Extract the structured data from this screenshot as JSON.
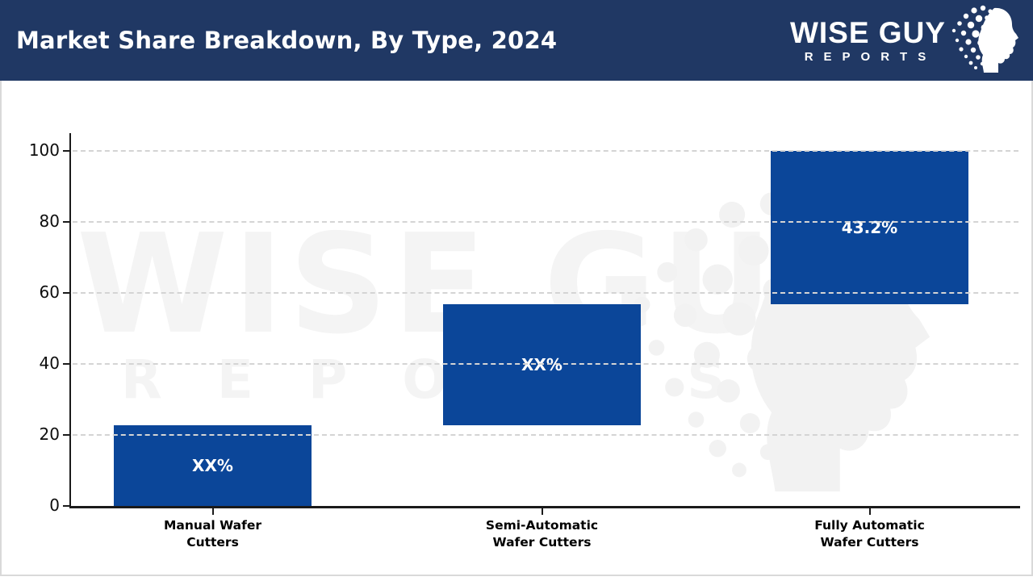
{
  "header": {
    "title": "Market Share Breakdown, By Type, 2024",
    "logo": {
      "name": "WISE GUY",
      "tagline": "REPORTS"
    }
  },
  "watermark": {
    "line1": "WISE GUY",
    "line2": "REPORTS"
  },
  "colors": {
    "header_bg": "#203864",
    "bar": "#0b4699",
    "grid": "#d4d4d4",
    "axis": "#1a1a1a",
    "watermark": "#f4f4f4",
    "title_text": "#ffffff",
    "bar_label_text": "#ffffff"
  },
  "chart_data": {
    "type": "bar",
    "subtype": "stacked-waterfall",
    "title": "Market Share Breakdown, By Type, 2024",
    "categories": [
      "Manual Wafer Cutters",
      "Semi-Automatic Wafer Cutters",
      "Fully Automatic Wafer Cutters"
    ],
    "category_lines": [
      [
        "Manual Wafer",
        "Cutters"
      ],
      [
        "Semi-Automatic",
        "Wafer Cutters"
      ],
      [
        "Fully Automatic",
        "Wafer Cutters"
      ]
    ],
    "bars": [
      {
        "category": "Manual Wafer Cutters",
        "start": 0,
        "end": 22.7,
        "value": 22.7,
        "label": "XX%"
      },
      {
        "category": "Semi-Automatic Wafer Cutters",
        "start": 22.7,
        "end": 56.8,
        "value": 34.1,
        "label": "XX%"
      },
      {
        "category": "Fully Automatic Wafer Cutters",
        "start": 56.8,
        "end": 100,
        "value": 43.2,
        "label": "43.2%"
      }
    ],
    "yticks": [
      0,
      20,
      40,
      60,
      80,
      100
    ],
    "ylim": [
      0,
      105
    ],
    "xlabel": "",
    "ylabel": "",
    "grid": true,
    "gridline_style": "dashed",
    "legend_position": "none"
  }
}
